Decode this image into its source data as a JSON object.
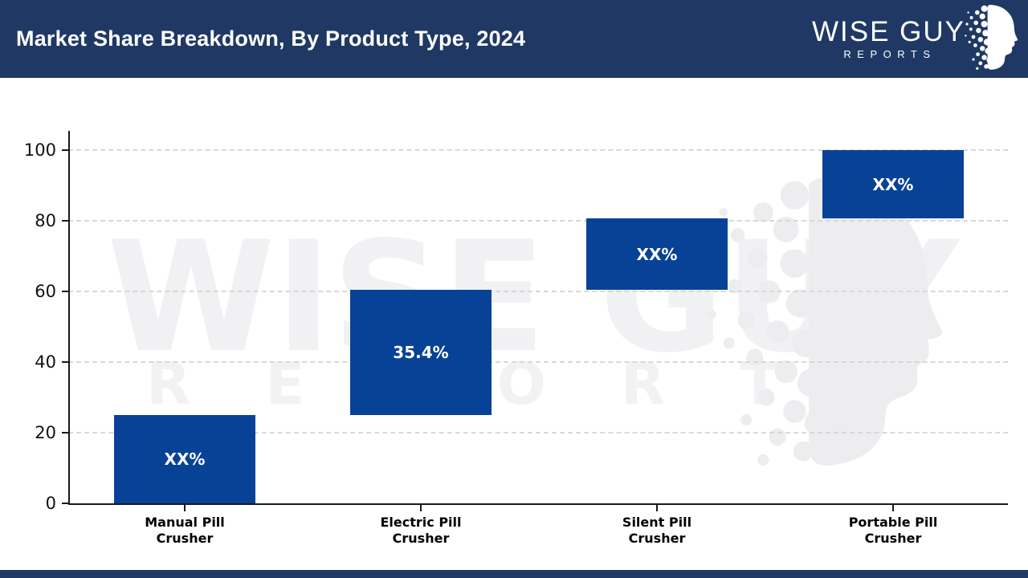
{
  "header": {
    "title": "Market Share Breakdown, By Product Type, 2024",
    "logo": {
      "name_top": "WISE GUY",
      "name_bottom": "REPORTS"
    }
  },
  "watermark": {
    "text_top": "WISE GUY",
    "text_bottom": "R E P O R T S"
  },
  "colors": {
    "header_bg": "#1f3864",
    "bar_fill": "#084296",
    "bar_label_text": "#ffffff",
    "grid_line": "#d8d8d8",
    "axis_line": "#1a1a1a",
    "watermark_gray": "#f1f1f4"
  },
  "chart_data": {
    "type": "bar",
    "subtype": "waterfall",
    "title": "Market Share Breakdown, By Product Type, 2024",
    "categories": [
      "Manual Pill Crusher",
      "Electric Pill Crusher",
      "Silent Pill Crusher",
      "Portable Pill Crusher"
    ],
    "series": [
      {
        "category": "Manual Pill Crusher",
        "start": 0,
        "end": 25,
        "height": 25,
        "label": "XX%"
      },
      {
        "category": "Electric Pill Crusher",
        "start": 25,
        "end": 60.4,
        "height": 35.4,
        "label": "35.4%"
      },
      {
        "category": "Silent Pill Crusher",
        "start": 60.4,
        "end": 80.6,
        "height": 20.2,
        "label": "XX%"
      },
      {
        "category": "Portable Pill Crusher",
        "start": 80.6,
        "end": 100,
        "height": 19.4,
        "label": "XX%"
      }
    ],
    "xlabel": "",
    "ylabel": "",
    "ylim": [
      0,
      100
    ],
    "yticks": [
      0,
      20,
      40,
      60,
      80,
      100
    ],
    "grid": "horizontal-dashed",
    "legend": "none"
  }
}
